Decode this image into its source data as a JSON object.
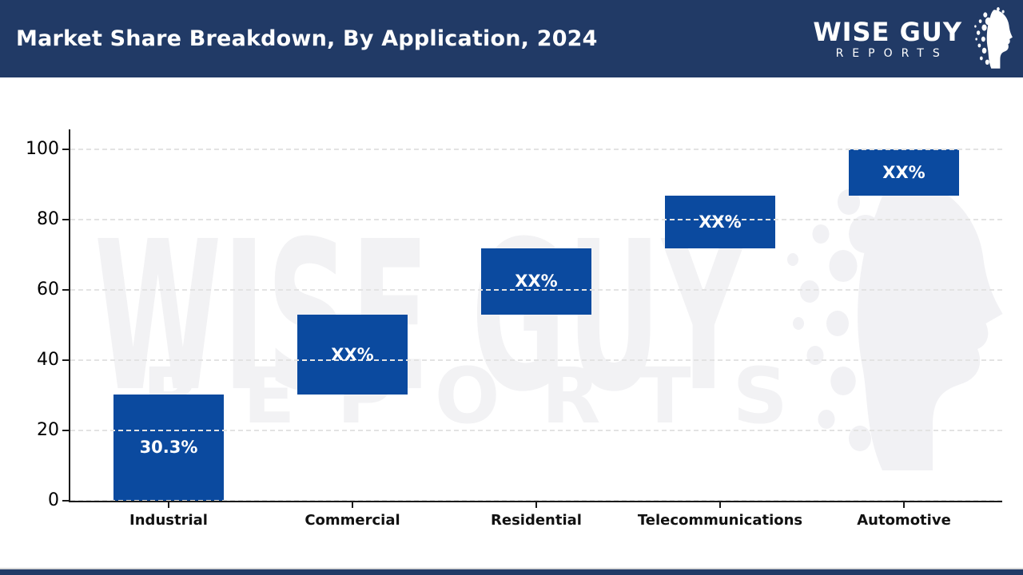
{
  "header": {
    "title": "Market Share Breakdown, By Application, 2024",
    "logo": {
      "line1": "WISE GUY",
      "line2": "REPORTS"
    },
    "background_color": "#213a66",
    "text_color": "#ffffff"
  },
  "watermark": {
    "line1": "WISE GUY",
    "line2": "REPORTS"
  },
  "chart_data": {
    "type": "bar",
    "subtype": "waterfall",
    "title": "Market Share Breakdown, By Application, 2024",
    "categories": [
      "Industrial",
      "Commercial",
      "Residential",
      "Telecommunications",
      "Automotive"
    ],
    "segments": [
      {
        "category": "Industrial",
        "start": 0,
        "end": 30.3,
        "label": "30.3%"
      },
      {
        "category": "Commercial",
        "start": 30.3,
        "end": 53.0,
        "label": "XX%"
      },
      {
        "category": "Residential",
        "start": 53.0,
        "end": 71.9,
        "label": "XX%"
      },
      {
        "category": "Telecommunications",
        "start": 71.9,
        "end": 86.9,
        "label": "XX%"
      },
      {
        "category": "Automotive",
        "start": 86.9,
        "end": 100,
        "label": "XX%"
      }
    ],
    "values_pct": [
      30.3,
      22.7,
      18.9,
      15.0,
      13.1
    ],
    "xlabel": "",
    "ylabel": "",
    "yticks": [
      0,
      20,
      40,
      60,
      80,
      100
    ],
    "ylim": [
      0,
      105
    ],
    "grid": "horizontal dashed",
    "legend": "none",
    "bar_color": "#0b4a9f",
    "bar_label_color": "#ffffff",
    "gridline_color": "#e3e3e3",
    "axis_color": "#1a1a1a"
  },
  "footer": {
    "background_color": "#213a66"
  }
}
